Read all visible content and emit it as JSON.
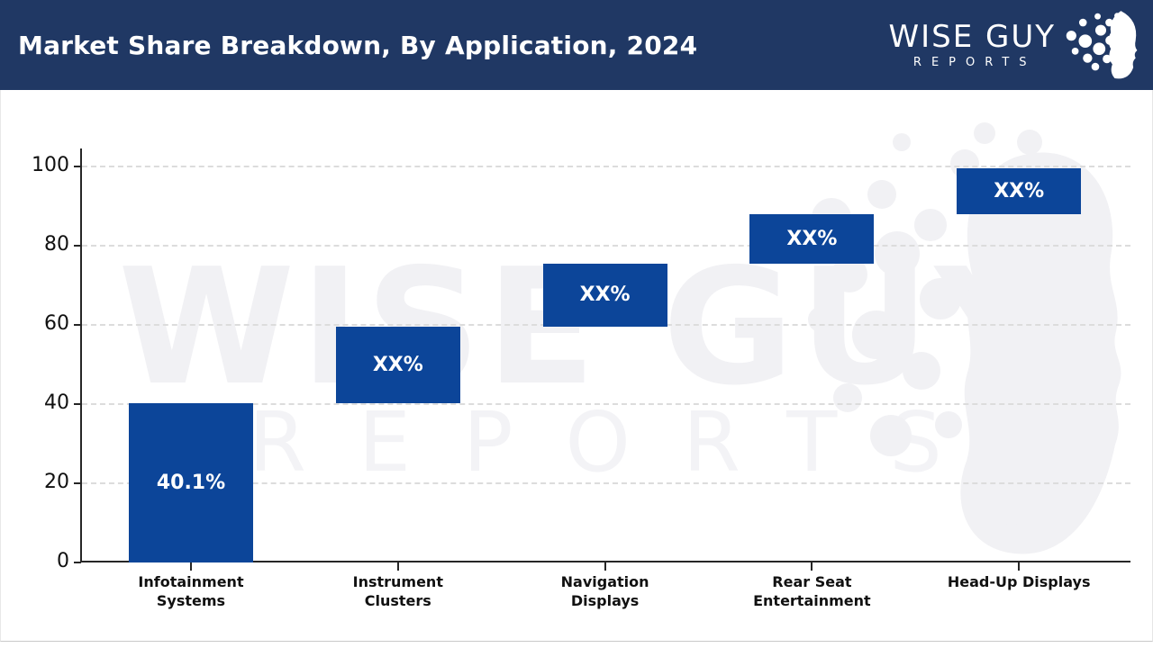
{
  "header": {
    "title": "Market Share Breakdown, By Application, 2024",
    "background": "#203864",
    "logo": {
      "line1": "WISE GUY",
      "line2": "REPORTS"
    }
  },
  "watermark": {
    "line1": "WISE GUY",
    "line2": "REPORTS"
  },
  "chart_data": {
    "type": "bar",
    "subtype": "waterfall",
    "title": "Market Share Breakdown, By Application, 2024",
    "categories": [
      "Infotainment\nSystems",
      "Instrument\nClusters",
      "Navigation\nDisplays",
      "Rear Seat\nEntertainment",
      "Head-Up Displays"
    ],
    "segments": [
      {
        "category": "Infotainment Systems",
        "start": 0,
        "end": 40.1,
        "label": "40.1%"
      },
      {
        "category": "Instrument Clusters",
        "start": 40.1,
        "end": 59.6,
        "label": "XX%"
      },
      {
        "category": "Navigation Displays",
        "start": 59.6,
        "end": 75.4,
        "label": "XX%"
      },
      {
        "category": "Rear Seat Entertainment",
        "start": 75.4,
        "end": 88.0,
        "label": "XX%"
      },
      {
        "category": "Head-Up Displays",
        "start": 88.0,
        "end": 99.5,
        "label": "XX%"
      }
    ],
    "yticks": [
      0,
      20,
      40,
      60,
      80,
      100
    ],
    "ylim": [
      0,
      104.5
    ],
    "grid": {
      "axis": "y",
      "style": "dashed",
      "color": "#dcdcdc"
    },
    "bar_color": "#0c4599",
    "bar_label_color": "#ffffff",
    "axis_color": "#262626"
  }
}
